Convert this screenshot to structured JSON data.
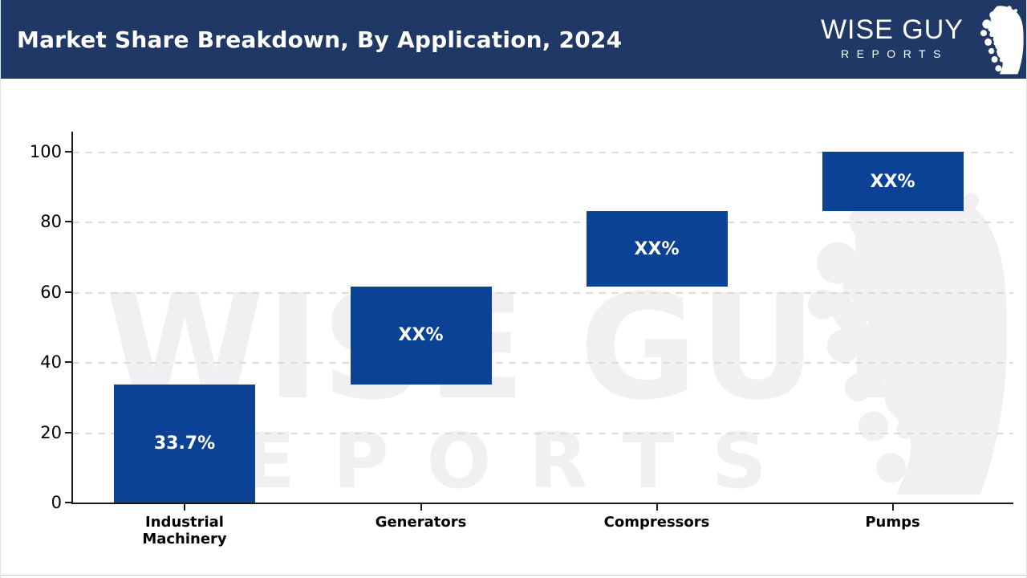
{
  "header": {
    "title": "Market Share Breakdown, By Application, 2024",
    "bg_color": "#1f3866",
    "logo": {
      "line1": "WISE GUY",
      "line2": "REPORTS"
    }
  },
  "watermark": {
    "line1": "WISE GUY",
    "line2": "REPORTS",
    "color": "#f0f0f3"
  },
  "colors": {
    "bar": "#0c4296",
    "bar_label": "#ffffff",
    "gridline": "#dcdcdc",
    "axis": "#1a1a1a",
    "tick_text": "#000000"
  },
  "chart_data": {
    "type": "bar",
    "subtype": "waterfall",
    "title": "Market Share Breakdown, By Application, 2024",
    "xlabel": "",
    "ylabel": "",
    "ylim": [
      0,
      100
    ],
    "yticks": [
      0,
      20,
      40,
      60,
      80,
      100
    ],
    "grid": "horizontal-dashed",
    "legend": "none",
    "categories": [
      "Industrial Machinery",
      "Generators",
      "Compressors",
      "Pumps"
    ],
    "category_lines": [
      [
        "Industrial",
        "Machinery"
      ],
      [
        "Generators"
      ],
      [
        "Compressors"
      ],
      [
        "Pumps"
      ]
    ],
    "segments": [
      {
        "category": "Industrial Machinery",
        "start": 0,
        "end": 33.7,
        "value": 33.7,
        "label": "33.7%"
      },
      {
        "category": "Generators",
        "start": 33.7,
        "end": 61.5,
        "value": 27.8,
        "label": "XX%"
      },
      {
        "category": "Compressors",
        "start": 61.5,
        "end": 83.0,
        "value": 21.5,
        "label": "XX%"
      },
      {
        "category": "Pumps",
        "start": 83.0,
        "end": 100,
        "value": 17.0,
        "label": "XX%"
      }
    ]
  }
}
